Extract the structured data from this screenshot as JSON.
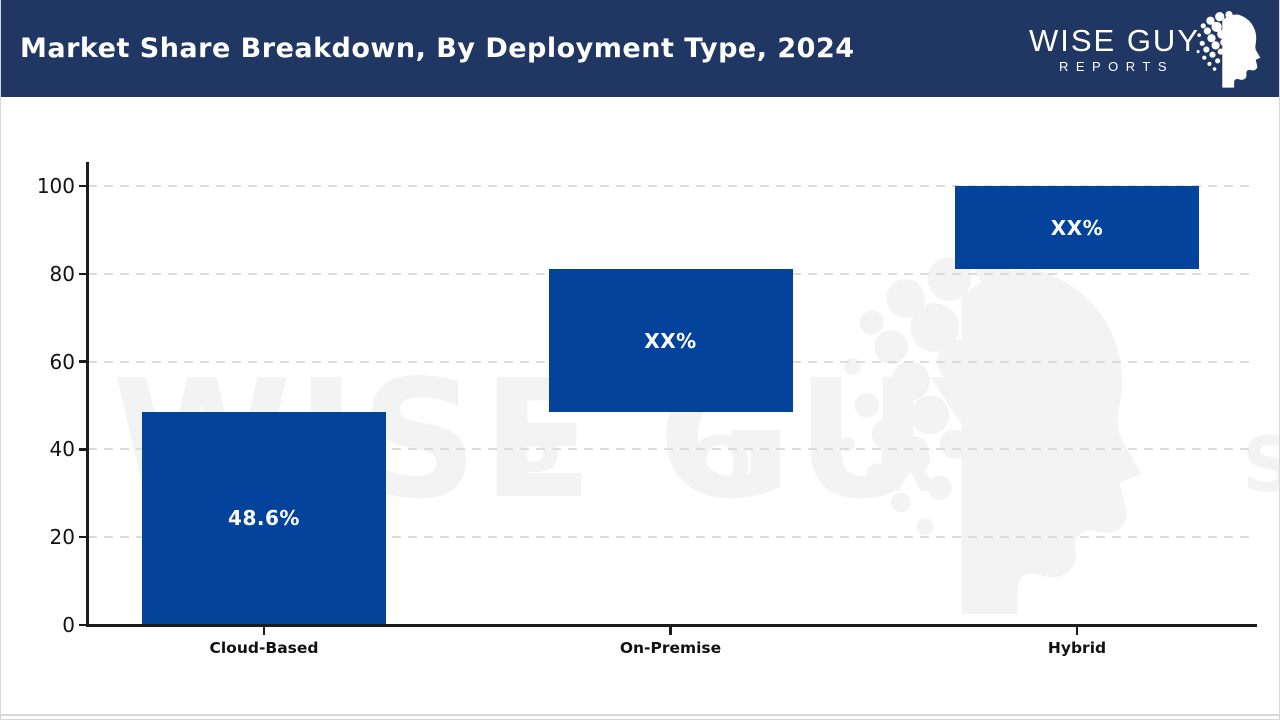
{
  "header": {
    "title": "Market Share Breakdown, By Deployment Type, 2024",
    "logo": {
      "line1": "WISE GUY",
      "line2": "REPORTS"
    }
  },
  "icons": {
    "logo_head": "dotted-profile-head-icon"
  },
  "watermark": {
    "line1": "WISE GUY",
    "line2": "R E P O R T S"
  },
  "colors": {
    "header_bg": "#213763",
    "bar": "#04439c",
    "grid": "#dcdcdc",
    "axis": "#1c1c1c",
    "watermark": "#f3f3f3",
    "frame": "#d8d8d8",
    "bar_label": "#ffffff"
  },
  "chart_data": {
    "type": "bar",
    "variant": "waterfall-floating-bars",
    "title": "Market Share Breakdown, By Deployment Type, 2024",
    "categories": [
      "Cloud-Based",
      "On-Premise",
      "Hybrid"
    ],
    "bars": [
      {
        "category": "Cloud-Based",
        "start": 0,
        "end": 48.6,
        "value": 48.6,
        "label": "48.6%"
      },
      {
        "category": "On-Premise",
        "start": 48.6,
        "end": 81,
        "value": 32.4,
        "label": "XX%"
      },
      {
        "category": "Hybrid",
        "start": 81,
        "end": 100,
        "value": 19,
        "label": "XX%"
      }
    ],
    "yticks": [
      0,
      20,
      40,
      60,
      80,
      100
    ],
    "ylim": [
      0,
      105
    ],
    "xlabel": "",
    "ylabel": "",
    "grid": "dashed-horizontal",
    "legend": "none"
  }
}
